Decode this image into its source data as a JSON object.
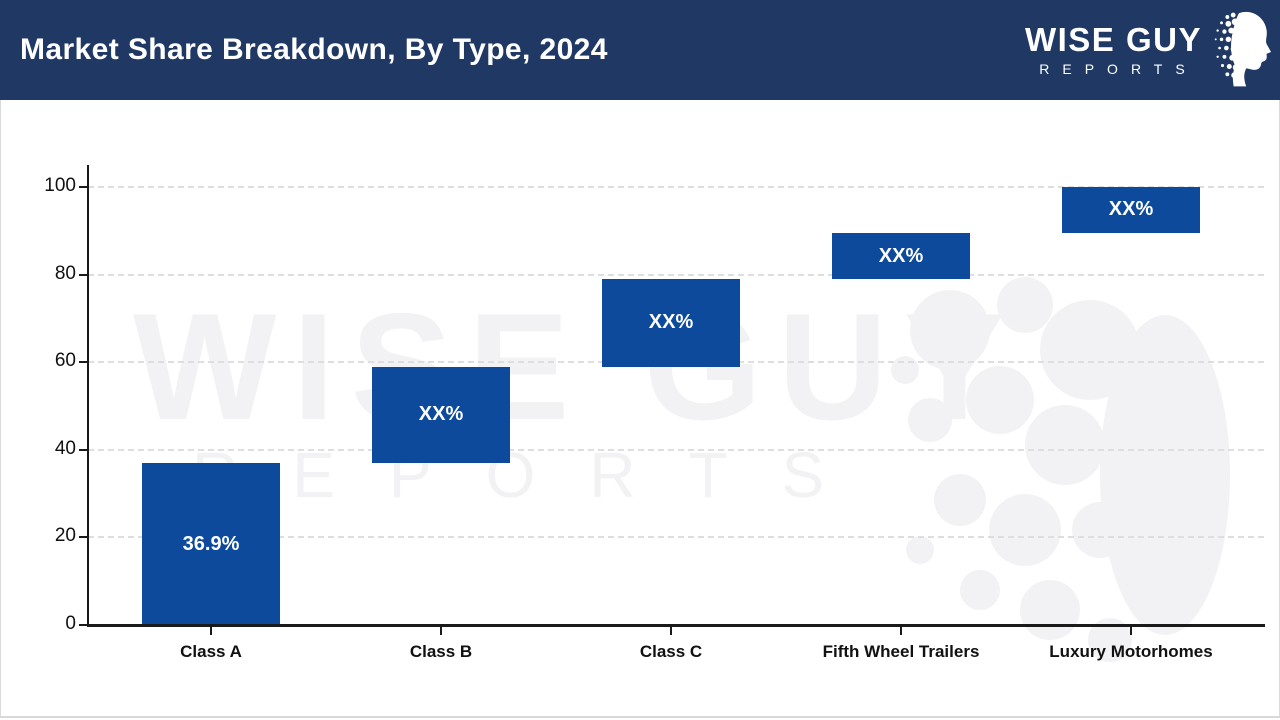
{
  "header": {
    "title": "Market Share Breakdown, By Type, 2024",
    "logo": {
      "wordmark": "WISE GUY",
      "subtext": "REPORTS"
    }
  },
  "watermark": {
    "line1": "WISE GUY",
    "line2": "REPORTS"
  },
  "chart_data": {
    "type": "bar",
    "subtype": "waterfall",
    "title": "Market Share Breakdown, By Type, 2024",
    "categories": [
      "Class A",
      "Class B",
      "Class C",
      "Fifth Wheel Trailers",
      "Luxury Motorhomes"
    ],
    "bars": [
      {
        "label": "Class A",
        "start": 0,
        "end": 36.9,
        "value_label": "36.9%"
      },
      {
        "label": "Class B",
        "start": 36.9,
        "end": 59.0,
        "value_label": "XX%"
      },
      {
        "label": "Class C",
        "start": 59.0,
        "end": 78.9,
        "value_label": "XX%"
      },
      {
        "label": "Fifth Wheel Trailers",
        "start": 78.9,
        "end": 89.5,
        "value_label": "XX%"
      },
      {
        "label": "Luxury Motorhomes",
        "start": 89.5,
        "end": 100,
        "value_label": "XX%"
      }
    ],
    "values_pct": [
      36.9,
      22.1,
      19.9,
      10.6,
      10.5
    ],
    "y_ticks": [
      0,
      20,
      40,
      60,
      80,
      100
    ],
    "ylim": [
      0,
      100
    ],
    "grid": "horizontal dashed",
    "legend": "none",
    "bar_color": "#0d4a9c"
  },
  "colors": {
    "header_bg": "#203864",
    "bar": "#0d4a9c",
    "grid": "#dedede",
    "axis": "#1a1a1a",
    "watermark": "#f2f2f4",
    "text": "#111111"
  }
}
